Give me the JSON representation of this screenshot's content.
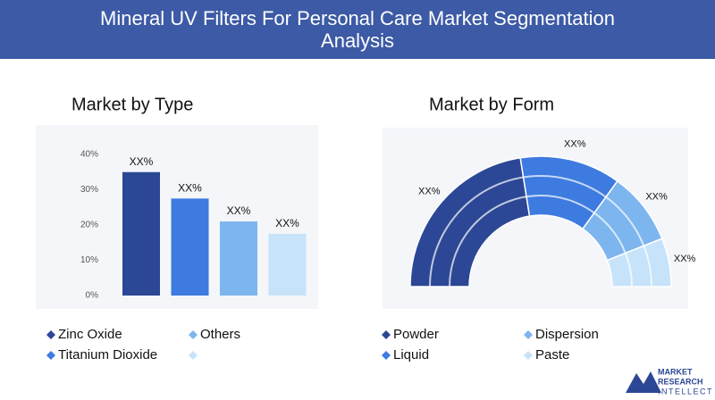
{
  "header": {
    "title": "Mineral UV Filters For Personal Care Market Segmentation Analysis"
  },
  "chart_data": [
    {
      "type": "bar",
      "title": "Market by Type",
      "categories": [
        "Zinc Oxide",
        "Titanium Dioxide",
        "Others",
        null
      ],
      "values": [
        35,
        27.5,
        21,
        17.5
      ],
      "value_labels": [
        "XX%",
        "XX%",
        "XX%",
        "XX%"
      ],
      "colors": [
        "#2c4795",
        "#3d7be0",
        "#7db5ef",
        "#c6e3fa"
      ],
      "ylim": [
        0,
        40
      ],
      "yticks": [
        {
          "value": 0,
          "label": "0%"
        },
        {
          "value": 10,
          "label": "10%"
        },
        {
          "value": 20,
          "label": "20%"
        },
        {
          "value": 30,
          "label": "30%"
        },
        {
          "value": 40,
          "label": "40%"
        }
      ]
    },
    {
      "type": "semi-donut",
      "title": "Market by Form",
      "categories": [
        "Powder",
        "Liquid",
        "Dispersion",
        "Paste"
      ],
      "values": [
        45,
        25,
        18,
        12
      ],
      "value_labels": [
        "XX%",
        "XX%",
        "XX%",
        "XX%"
      ],
      "colors": [
        "#2c4795",
        "#3d7be0",
        "#7db5ef",
        "#c6e3fa"
      ]
    }
  ],
  "logo": {
    "lines": [
      "MARKET",
      "RESEARCH",
      "INTELLECT"
    ]
  }
}
